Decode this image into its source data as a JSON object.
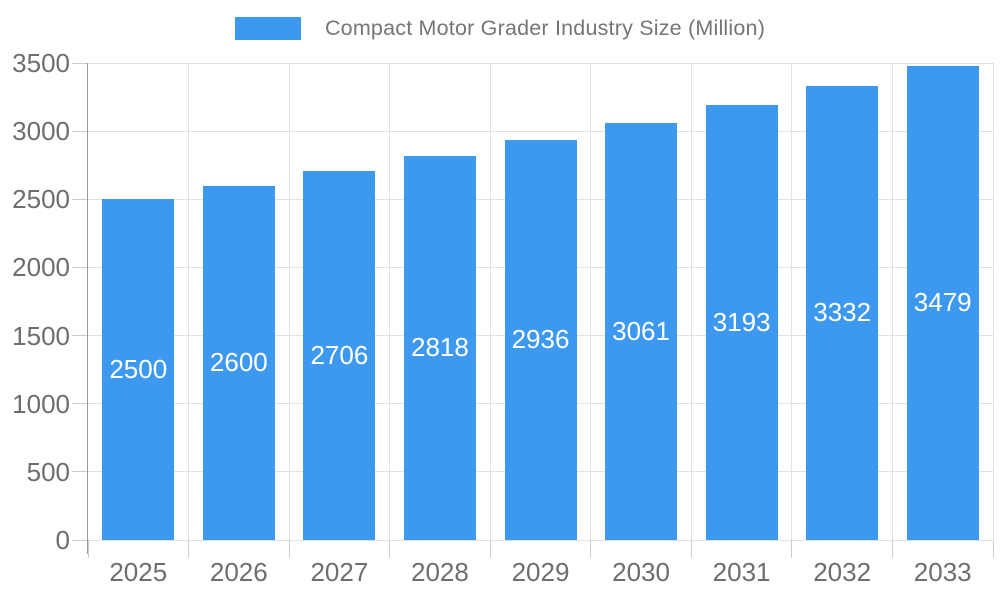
{
  "legend": {
    "label": "Compact Motor Grader Industry Size (Million)"
  },
  "colors": {
    "bar": "#3d99f0",
    "bar_value_label": "#ffffff",
    "axis_label": "#6e6e6e",
    "title": "#757575",
    "gridline": "#e2e2e2",
    "axis_line": "#9a9a9a",
    "tick": "#cccccc",
    "background": "#ffffff"
  },
  "chart_data": {
    "type": "bar",
    "title": "Compact Motor Grader Industry Size (Million)",
    "legend_entries": [
      "Compact Motor Grader Industry Size (Million)"
    ],
    "legend_position": "top",
    "categories": [
      "2025",
      "2026",
      "2027",
      "2028",
      "2029",
      "2030",
      "2031",
      "2032",
      "2033"
    ],
    "values": [
      2500,
      2600,
      2706,
      2818,
      2936,
      3061,
      3193,
      3332,
      3479
    ],
    "xlabel": "",
    "ylabel": "",
    "ylim": [
      0,
      3500
    ],
    "yticks": [
      0,
      500,
      1000,
      1500,
      2000,
      2500,
      3000,
      3500
    ],
    "grid": true,
    "value_labels": "inside-center"
  }
}
